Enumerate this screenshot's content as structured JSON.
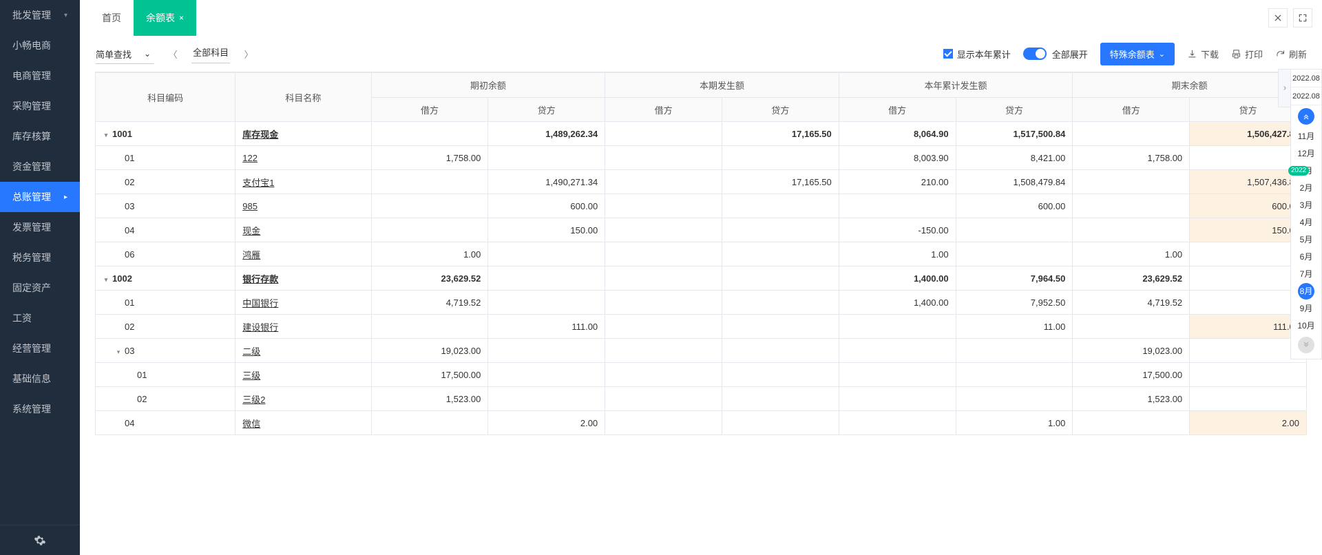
{
  "colors": {
    "sidebar_bg": "#1f2d3d",
    "primary": "#2878ff",
    "tab_active": "#00c292",
    "highlight_cell": "#fdf1e2",
    "border": "#e4e7ed"
  },
  "sidebar": {
    "items": [
      {
        "label": "批发管理",
        "caret": true,
        "active": false
      },
      {
        "label": "小畅电商",
        "caret": false,
        "active": false
      },
      {
        "label": "电商管理",
        "caret": false,
        "active": false
      },
      {
        "label": "采购管理",
        "caret": false,
        "active": false
      },
      {
        "label": "库存核算",
        "caret": false,
        "active": false
      },
      {
        "label": "资金管理",
        "caret": false,
        "active": false
      },
      {
        "label": "总账管理",
        "caret": true,
        "active": true
      },
      {
        "label": "发票管理",
        "caret": false,
        "active": false
      },
      {
        "label": "税务管理",
        "caret": false,
        "active": false
      },
      {
        "label": "固定资产",
        "caret": false,
        "active": false
      },
      {
        "label": "工资",
        "caret": false,
        "active": false
      },
      {
        "label": "经营管理",
        "caret": false,
        "active": false
      },
      {
        "label": "基础信息",
        "caret": false,
        "active": false
      },
      {
        "label": "系统管理",
        "caret": false,
        "active": false
      }
    ]
  },
  "tabs": [
    {
      "label": "首页",
      "active": false,
      "closable": false
    },
    {
      "label": "余额表",
      "active": true,
      "closable": true
    }
  ],
  "toolbar": {
    "search_mode": "简单查找",
    "subject_filter": "全部科目",
    "show_year_total": "显示本年累计",
    "expand_all": "全部展开",
    "special_balance": "特殊余额表",
    "download": "下载",
    "print": "打印",
    "refresh": "刷新"
  },
  "table": {
    "headers": {
      "code": "科目编码",
      "name": "科目名称",
      "opening": "期初余额",
      "current": "本期发生额",
      "year": "本年累计发生额",
      "closing": "期末余额",
      "debit": "借方",
      "credit": "贷方"
    },
    "rows": [
      {
        "bold": true,
        "indent": 0,
        "expander": "▾",
        "code": "1001",
        "name": "库存现金",
        "open_d": "",
        "open_c": "1,489,262.34",
        "cur_d": "",
        "cur_c": "17,165.50",
        "yr_d": "8,064.90",
        "yr_c": "1,517,500.84",
        "cls_d": "",
        "cls_c": "1,506,427.84",
        "hl_cls_c": true
      },
      {
        "bold": false,
        "indent": 1,
        "expander": "",
        "code": "01",
        "name": "122",
        "open_d": "1,758.00",
        "open_c": "",
        "cur_d": "",
        "cur_c": "",
        "yr_d": "8,003.90",
        "yr_c": "8,421.00",
        "cls_d": "1,758.00",
        "cls_c": ""
      },
      {
        "bold": false,
        "indent": 1,
        "expander": "",
        "code": "02",
        "name": "支付宝1",
        "open_d": "",
        "open_c": "1,490,271.34",
        "cur_d": "",
        "cur_c": "17,165.50",
        "yr_d": "210.00",
        "yr_c": "1,508,479.84",
        "cls_d": "",
        "cls_c": "1,507,436.84",
        "hl_cls_c": true
      },
      {
        "bold": false,
        "indent": 1,
        "expander": "",
        "code": "03",
        "name": "985",
        "open_d": "",
        "open_c": "600.00",
        "cur_d": "",
        "cur_c": "",
        "yr_d": "",
        "yr_c": "600.00",
        "cls_d": "",
        "cls_c": "600.00",
        "hl_cls_c": true
      },
      {
        "bold": false,
        "indent": 1,
        "expander": "",
        "code": "04",
        "name": "现金",
        "open_d": "",
        "open_c": "150.00",
        "cur_d": "",
        "cur_c": "",
        "yr_d": "-150.00",
        "yr_c": "",
        "cls_d": "",
        "cls_c": "150.00",
        "hl_cls_c": true
      },
      {
        "bold": false,
        "indent": 1,
        "expander": "",
        "code": "06",
        "name": "鸿雁",
        "open_d": "1.00",
        "open_c": "",
        "cur_d": "",
        "cur_c": "",
        "yr_d": "1.00",
        "yr_c": "",
        "cls_d": "1.00",
        "cls_c": ""
      },
      {
        "bold": true,
        "indent": 0,
        "expander": "▾",
        "code": "1002",
        "name": "银行存款",
        "open_d": "23,629.52",
        "open_c": "",
        "cur_d": "",
        "cur_c": "",
        "yr_d": "1,400.00",
        "yr_c": "7,964.50",
        "cls_d": "23,629.52",
        "cls_c": ""
      },
      {
        "bold": false,
        "indent": 1,
        "expander": "",
        "code": "01",
        "name": "中国银行",
        "open_d": "4,719.52",
        "open_c": "",
        "cur_d": "",
        "cur_c": "",
        "yr_d": "1,400.00",
        "yr_c": "7,952.50",
        "cls_d": "4,719.52",
        "cls_c": ""
      },
      {
        "bold": false,
        "indent": 1,
        "expander": "",
        "code": "02",
        "name": "建设银行",
        "open_d": "",
        "open_c": "111.00",
        "cur_d": "",
        "cur_c": "",
        "yr_d": "",
        "yr_c": "11.00",
        "cls_d": "",
        "cls_c": "111.00",
        "hl_cls_c": true
      },
      {
        "bold": false,
        "indent": 1,
        "expander": "▾",
        "code": "03",
        "name": "二级",
        "open_d": "19,023.00",
        "open_c": "",
        "cur_d": "",
        "cur_c": "",
        "yr_d": "",
        "yr_c": "",
        "cls_d": "19,023.00",
        "cls_c": ""
      },
      {
        "bold": false,
        "indent": 2,
        "expander": "",
        "code": "01",
        "name": "三级",
        "open_d": "17,500.00",
        "open_c": "",
        "cur_d": "",
        "cur_c": "",
        "yr_d": "",
        "yr_c": "",
        "cls_d": "17,500.00",
        "cls_c": ""
      },
      {
        "bold": false,
        "indent": 2,
        "expander": "",
        "code": "02",
        "name": "三级2",
        "open_d": "1,523.00",
        "open_c": "",
        "cur_d": "",
        "cur_c": "",
        "yr_d": "",
        "yr_c": "",
        "cls_d": "1,523.00",
        "cls_c": ""
      },
      {
        "bold": false,
        "indent": 1,
        "expander": "",
        "code": "04",
        "name": "微信",
        "open_d": "",
        "open_c": "2.00",
        "cur_d": "",
        "cur_c": "",
        "yr_d": "",
        "yr_c": "1.00",
        "cls_d": "",
        "cls_c": "2.00",
        "hl_cls_c": true
      }
    ]
  },
  "period": {
    "range_top": "2022.08",
    "range_bottom": "2022.08",
    "year_badge": "2022",
    "months": [
      {
        "label": "11月",
        "current": false
      },
      {
        "label": "12月",
        "current": false
      },
      {
        "label": "1月",
        "current": false,
        "year_start": true
      },
      {
        "label": "2月",
        "current": false
      },
      {
        "label": "3月",
        "current": false
      },
      {
        "label": "4月",
        "current": false
      },
      {
        "label": "5月",
        "current": false
      },
      {
        "label": "6月",
        "current": false
      },
      {
        "label": "7月",
        "current": false
      },
      {
        "label": "8月",
        "current": true
      },
      {
        "label": "9月",
        "current": false
      },
      {
        "label": "10月",
        "current": false
      }
    ]
  }
}
